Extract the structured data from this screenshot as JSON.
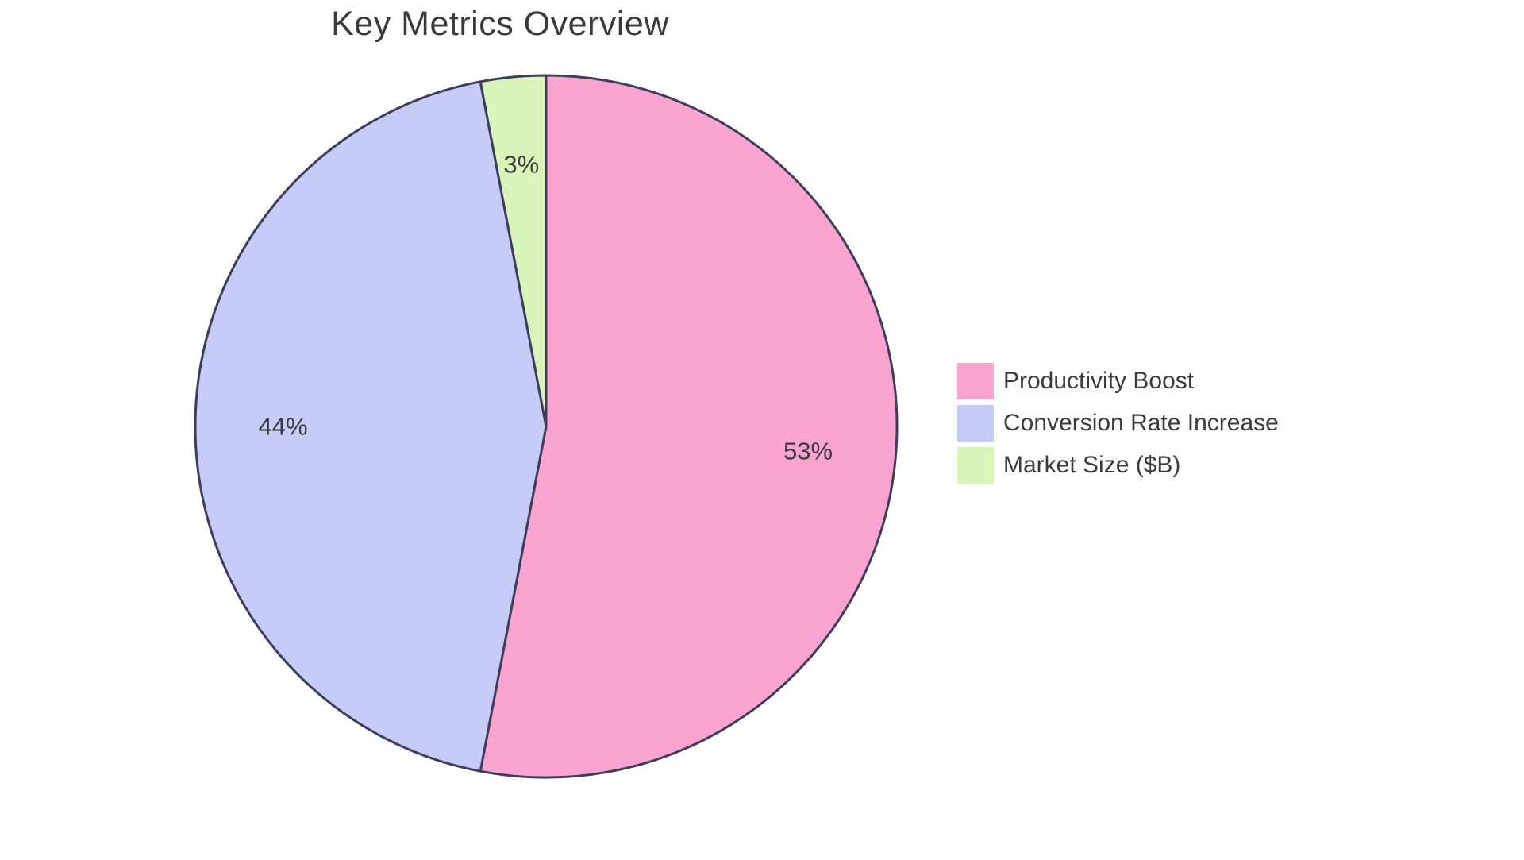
{
  "chart_data": {
    "type": "pie",
    "title": "Key Metrics Overview",
    "categories": [
      "Productivity Boost",
      "Conversion Rate Increase",
      "Market Size ($B)"
    ],
    "values": [
      53,
      44,
      3
    ],
    "slice_labels": [
      "53%",
      "44%",
      "3%"
    ],
    "colors": [
      "#FAA4CF",
      "#C7CBF8",
      "#D8F4B8"
    ],
    "border_color": "#3E3E5C",
    "label_color": "#3B3B3B",
    "background": "#FFFFFF",
    "legend_position": "right",
    "start_angle_deg": 0,
    "direction": "clockwise"
  }
}
